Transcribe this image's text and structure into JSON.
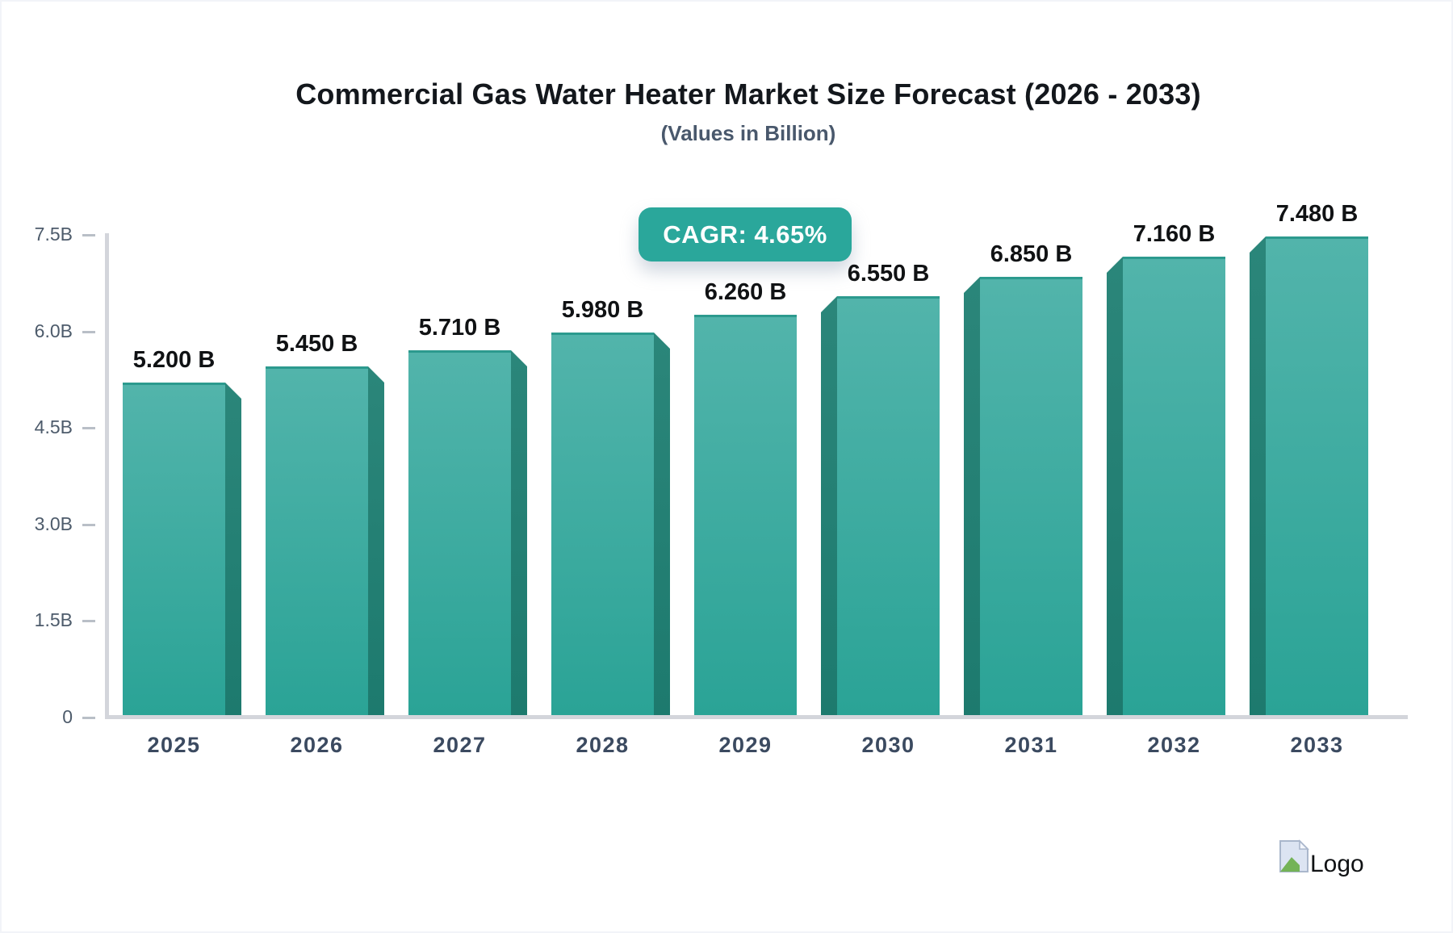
{
  "header": {
    "title": "Commercial Gas Water Heater Market Size Forecast (2026 - 2033)",
    "subtitle": "(Values in Billion)"
  },
  "badge": {
    "label": "CAGR: 4.65%",
    "background": "#2aa79b",
    "text_color": "#ffffff"
  },
  "footer": {
    "logo_text": "Logo"
  },
  "chart_data": {
    "type": "bar",
    "title": "Commercial Gas Water Heater Market Size Forecast (2026 - 2033)",
    "subtitle": "(Values in Billion)",
    "categories": [
      "2025",
      "2026",
      "2027",
      "2028",
      "2029",
      "2030",
      "2031",
      "2032",
      "2033"
    ],
    "values": [
      5.2,
      5.45,
      5.71,
      5.98,
      6.26,
      6.55,
      6.85,
      7.16,
      7.48
    ],
    "value_labels": [
      "5.200 B",
      "5.450 B",
      "5.710 B",
      "5.980 B",
      "6.260 B",
      "6.550 B",
      "6.850 B",
      "7.160 B",
      "7.480 B"
    ],
    "cagr_annotation": "CAGR: 4.65%",
    "xlabel": "",
    "ylabel": "",
    "ylim": [
      0,
      7.5
    ],
    "yticks": {
      "values": [
        0,
        1.5,
        3.0,
        4.5,
        6.0,
        7.5
      ],
      "labels": [
        "0",
        "1.5B",
        "3.0B",
        "4.5B",
        "6.0B",
        "7.5B"
      ]
    },
    "grid": false,
    "legend": false,
    "colors": {
      "bar_top": "#52b4ab",
      "bar_bottom": "#2aa396",
      "bar_top_edge": "#2c9a8e",
      "bar_side_top": "#2b867a",
      "bar_side_bottom": "#1d7a6e",
      "axis": "#d3d5db",
      "tick": "#b9bfc7",
      "value_label": "#101214",
      "category_label": "#3b4a60",
      "ytick_label": "#4d5b6b"
    }
  }
}
